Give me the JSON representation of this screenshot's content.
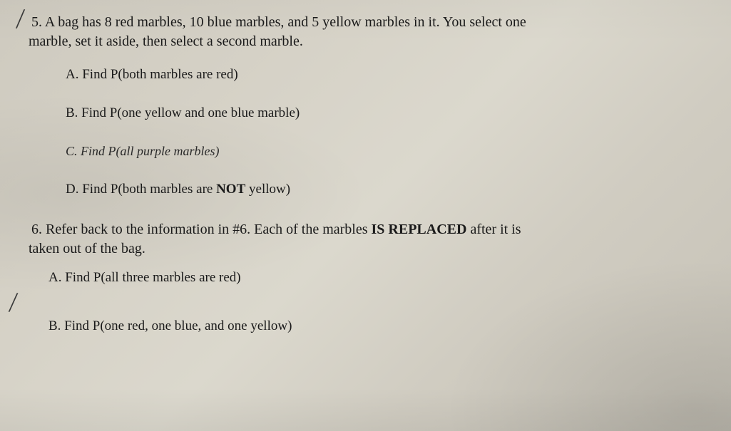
{
  "q5": {
    "number": "5.",
    "stem_l1": "A bag has 8 red marbles, 10 blue marbles, and 5 yellow marbles in it. You select one",
    "stem_l2": "marble, set it aside, then select a second marble.",
    "A": "A. Find P(both marbles are red)",
    "B": "B. Find P(one yellow and one blue marble)",
    "C": "C. Find P(all purple marbles)",
    "D_pre": "D. Find P(both marbles are ",
    "D_bold": "NOT",
    "D_post": " yellow)"
  },
  "q6": {
    "number": "6.",
    "stem_l1_pre": "Refer back to the information in #6. Each of the marbles ",
    "stem_l1_bold": "IS REPLACED",
    "stem_l1_post": " after it is",
    "stem_l2": "taken out of the bag.",
    "A": "A. Find P(all three marbles are red)",
    "B": "B. Find P(one red, one blue, and one yellow)"
  }
}
